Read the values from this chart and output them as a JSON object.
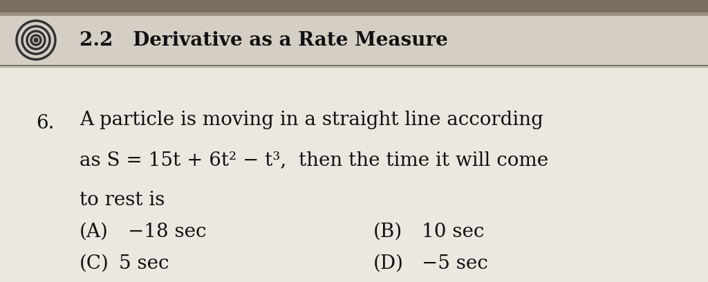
{
  "background_color_top": "#c8c0b0",
  "background_color_main": "#e8e4dc",
  "header_bg_color": "#d4cec4",
  "header_text": "2.2   Derivative as a Rate Measure",
  "header_fontsize": 20,
  "header_color": "#111111",
  "question_number": "6.",
  "question_color": "#111111",
  "body_fontsize": 19,
  "body_text_line1": "A particle is moving in a straight line according",
  "body_text_line2": "as S = 15t + 6t² − t³,  then the time it will come",
  "body_text_line3": "to rest is",
  "options": [
    {
      "label": "(A)",
      "value": "−18 sec"
    },
    {
      "label": "(B)",
      "value": "10 sec"
    },
    {
      "label": "(C)",
      "value": "5 sec"
    },
    {
      "label": "(D)",
      "value": "−5 sec"
    }
  ],
  "top_stripe_color": "#7a7060",
  "top_stripe2_color": "#9a9080",
  "header_line_color": "#7a7060",
  "icon_color": "#333333"
}
